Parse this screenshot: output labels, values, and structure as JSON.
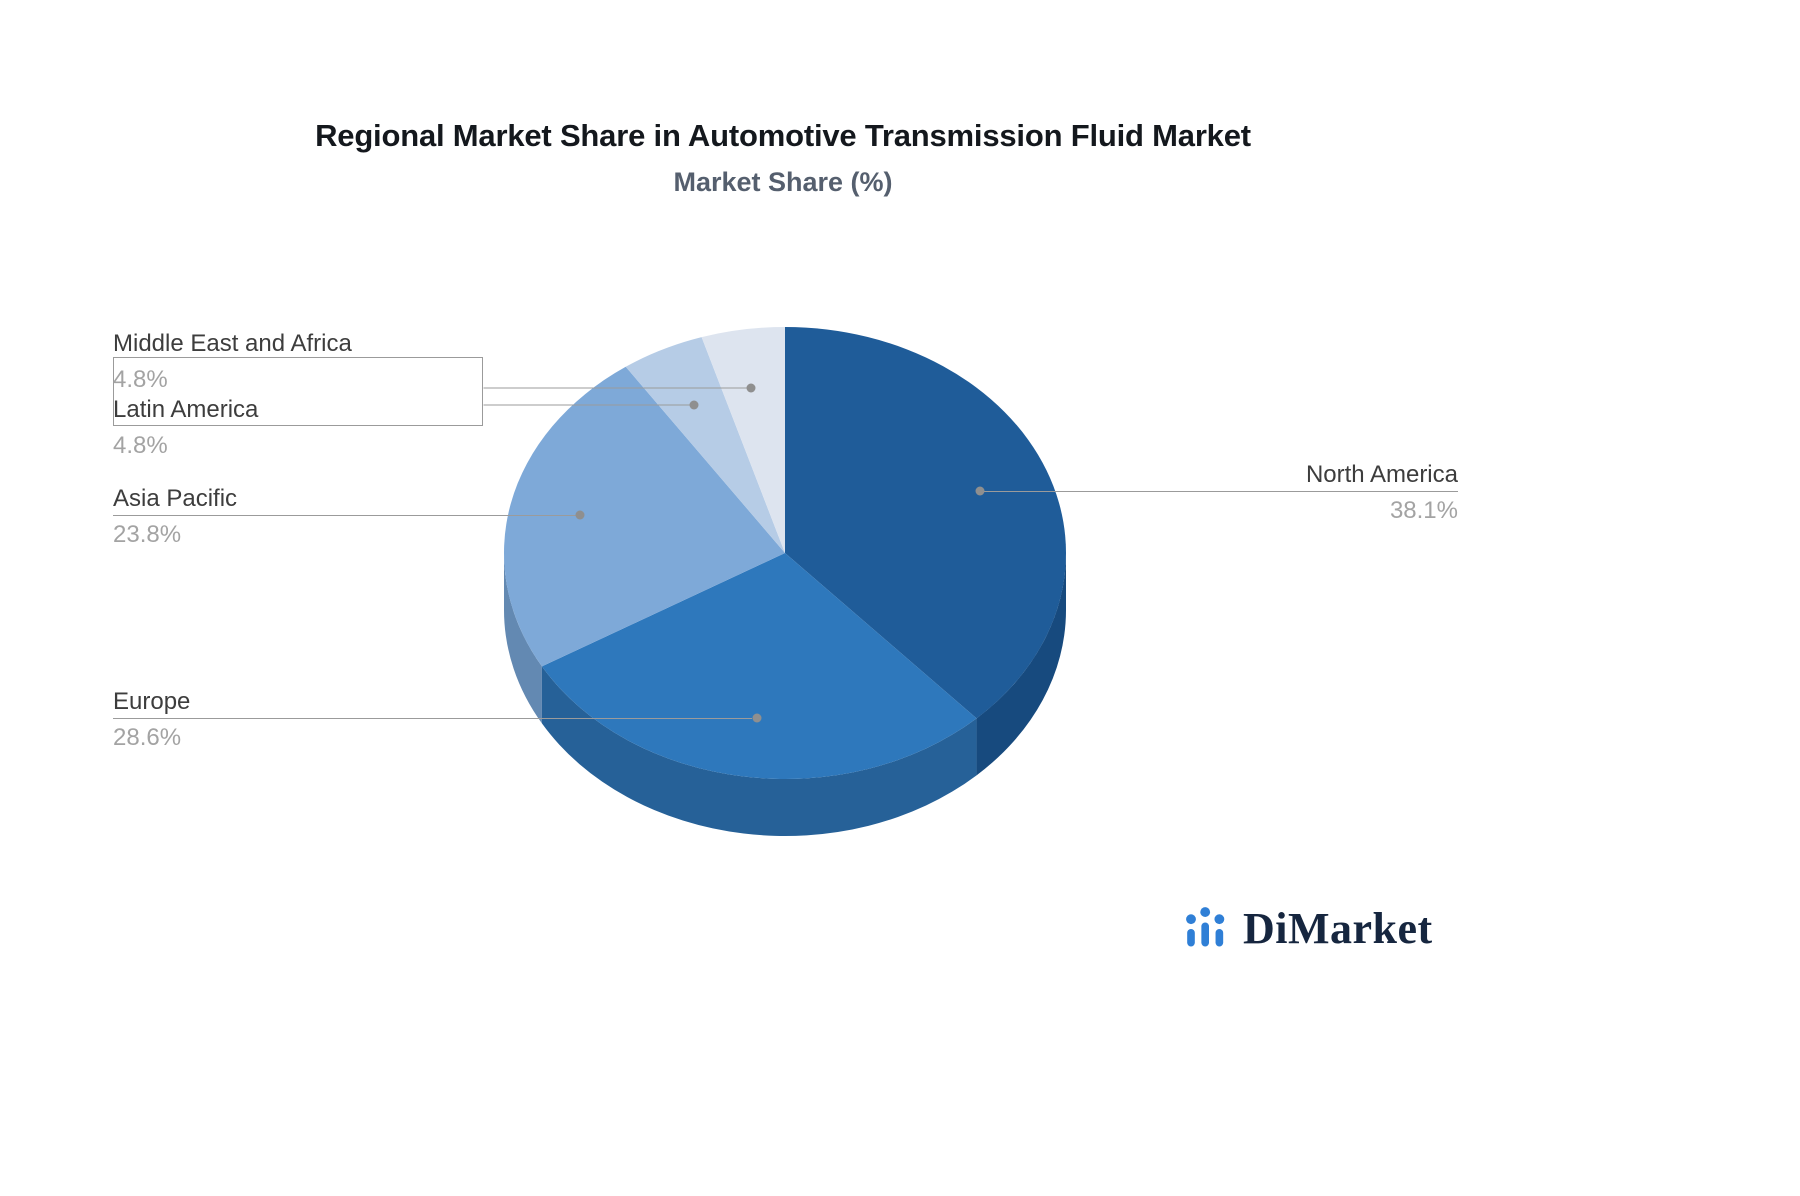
{
  "chart_data": {
    "type": "pie",
    "style": "3d",
    "title": "Regional Market Share in Automotive Transmission Fluid Market",
    "subtitle": "Market Share (%)",
    "unit": "%",
    "start_angle_deg": 0,
    "direction": "clockwise",
    "legend_position": "callout-labels",
    "segments": [
      {
        "label": "North America",
        "value": 38.1,
        "display": "38.1%",
        "color": "#1f5c99",
        "side_color": "#174a7e"
      },
      {
        "label": "Europe",
        "value": 28.6,
        "display": "28.6%",
        "color": "#2e78bc",
        "side_color": "#266198"
      },
      {
        "label": "Asia Pacific",
        "value": 23.8,
        "display": "23.8%",
        "color": "#7ea9d8",
        "side_color": "#6389b2"
      },
      {
        "label": "Latin America",
        "value": 4.8,
        "display": "4.8%",
        "color": "#b6cce6",
        "side_color": "#93a9c4"
      },
      {
        "label": "Middle East and Africa",
        "value": 4.8,
        "display": "4.8%",
        "color": "#dde4ef",
        "side_color": "#b4becd"
      }
    ]
  },
  "branding": {
    "name": "DiMarket",
    "icon": "bar-chart-logo-icon",
    "icon_color": "#2f7fd6",
    "text_color": "#16263f"
  },
  "colors": {
    "background": "#ffffff",
    "label_text": "#3d3d3d",
    "value_text": "#a3a3a3",
    "leader_line": "#9b9b9b",
    "leader_dot": "#8f8f8f"
  }
}
